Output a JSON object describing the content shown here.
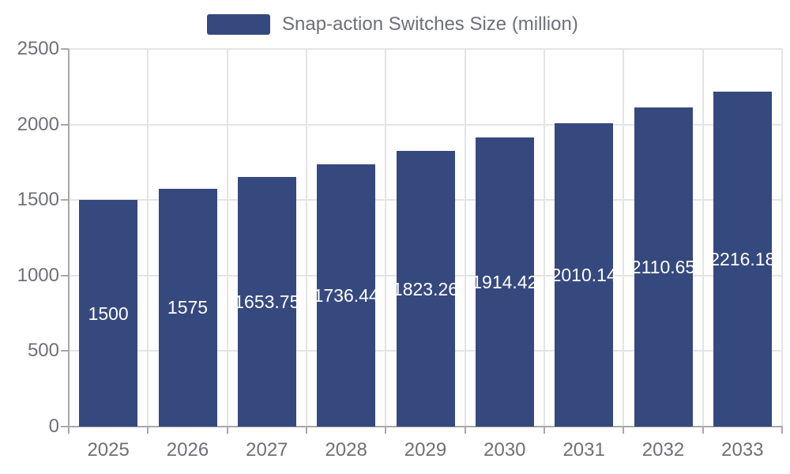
{
  "chart_data": {
    "type": "bar",
    "title": "Snap-action Switches Size (million)",
    "legend": [
      "Snap-action Switches Size (million)"
    ],
    "legend_position": "top-center",
    "categories": [
      "2025",
      "2026",
      "2027",
      "2028",
      "2029",
      "2030",
      "2031",
      "2032",
      "2033"
    ],
    "values": [
      1500,
      1575,
      1653.75,
      1736.44,
      1823.26,
      1914.42,
      2010.14,
      2110.65,
      2216.18
    ],
    "bar_labels": [
      "1500",
      "1575",
      "1653.75",
      "1736.44",
      "1823.26",
      "1914.42",
      "2010.14",
      "2110.65",
      "2216.18"
    ],
    "xlabel": "",
    "ylabel": "",
    "ylim": [
      0,
      2500
    ],
    "yticks": [
      0,
      500,
      1000,
      1500,
      2000,
      2500
    ],
    "grid": "both",
    "colors": {
      "bar": "#36497e",
      "axis_line": "#a8a8a8",
      "grid_line": "#e4e4e8",
      "axis_text": "#6e7079",
      "bar_label_text": "#ffffff",
      "background": "#ffffff"
    }
  }
}
